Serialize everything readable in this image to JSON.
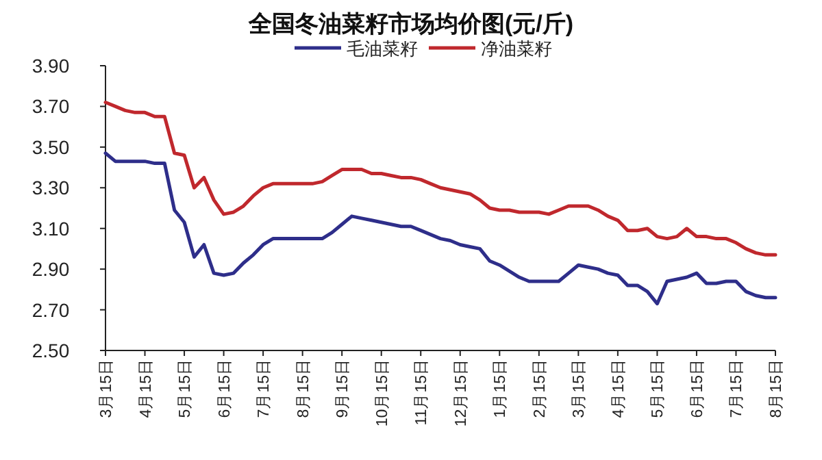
{
  "chart_data": {
    "type": "line",
    "title": "全国冬油菜籽市场均价图(元/斤)",
    "legend": "top",
    "ylim": [
      2.5,
      3.9
    ],
    "yticks": [
      {
        "value": 2.5,
        "label": "2.50"
      },
      {
        "value": 2.7,
        "label": "2.70"
      },
      {
        "value": 2.9,
        "label": "2.90"
      },
      {
        "value": 3.1,
        "label": "3.10"
      },
      {
        "value": 3.3,
        "label": "3.30"
      },
      {
        "value": 3.5,
        "label": "3.50"
      },
      {
        "value": 3.7,
        "label": "3.70"
      },
      {
        "value": 3.9,
        "label": "3.90"
      }
    ],
    "categories": [
      "3月15日",
      null,
      null,
      null,
      "4月15日",
      null,
      null,
      null,
      "5月15日",
      null,
      null,
      null,
      "6月15日",
      null,
      null,
      null,
      "7月15日",
      null,
      null,
      null,
      "8月15日",
      null,
      null,
      null,
      "9月15日",
      null,
      null,
      null,
      "10月15日",
      null,
      null,
      null,
      "11月15日",
      null,
      null,
      null,
      "12月15日",
      null,
      null,
      null,
      "1月15日",
      null,
      null,
      null,
      "2月15日",
      null,
      null,
      null,
      "3月15日",
      null,
      null,
      null,
      "4月15日",
      null,
      null,
      null,
      "5月15日",
      null,
      null,
      null,
      "6月15日",
      null,
      null,
      null,
      "7月15日",
      null,
      null,
      null,
      "8月15日"
    ],
    "series": [
      {
        "name": "毛油菜籽",
        "color": "#2e2e8a",
        "values": [
          3.47,
          3.43,
          3.43,
          3.43,
          3.43,
          3.42,
          3.42,
          3.19,
          3.13,
          2.96,
          3.02,
          2.88,
          2.87,
          2.88,
          2.93,
          2.97,
          3.02,
          3.05,
          3.05,
          3.05,
          3.05,
          3.05,
          3.05,
          3.08,
          3.12,
          3.16,
          3.15,
          3.14,
          3.13,
          3.12,
          3.11,
          3.11,
          3.09,
          3.07,
          3.05,
          3.04,
          3.02,
          3.01,
          3.0,
          2.94,
          2.92,
          2.89,
          2.86,
          2.84,
          2.84,
          2.84,
          2.84,
          2.88,
          2.92,
          2.91,
          2.9,
          2.88,
          2.87,
          2.82,
          2.82,
          2.79,
          2.73,
          2.84,
          2.85,
          2.86,
          2.88,
          2.83,
          2.83,
          2.84,
          2.84,
          2.79,
          2.77,
          2.76,
          2.76
        ]
      },
      {
        "name": "净油菜籽",
        "color": "#c0282d",
        "values": [
          3.72,
          3.7,
          3.68,
          3.67,
          3.67,
          3.65,
          3.65,
          3.47,
          3.46,
          3.3,
          3.35,
          3.24,
          3.17,
          3.18,
          3.21,
          3.26,
          3.3,
          3.32,
          3.32,
          3.32,
          3.32,
          3.32,
          3.33,
          3.36,
          3.39,
          3.39,
          3.39,
          3.37,
          3.37,
          3.36,
          3.35,
          3.35,
          3.34,
          3.32,
          3.3,
          3.29,
          3.28,
          3.27,
          3.24,
          3.2,
          3.19,
          3.19,
          3.18,
          3.18,
          3.18,
          3.17,
          3.19,
          3.21,
          3.21,
          3.21,
          3.19,
          3.16,
          3.14,
          3.09,
          3.09,
          3.1,
          3.06,
          3.05,
          3.06,
          3.1,
          3.06,
          3.06,
          3.05,
          3.05,
          3.03,
          3.0,
          2.98,
          2.97,
          2.97
        ]
      }
    ]
  }
}
